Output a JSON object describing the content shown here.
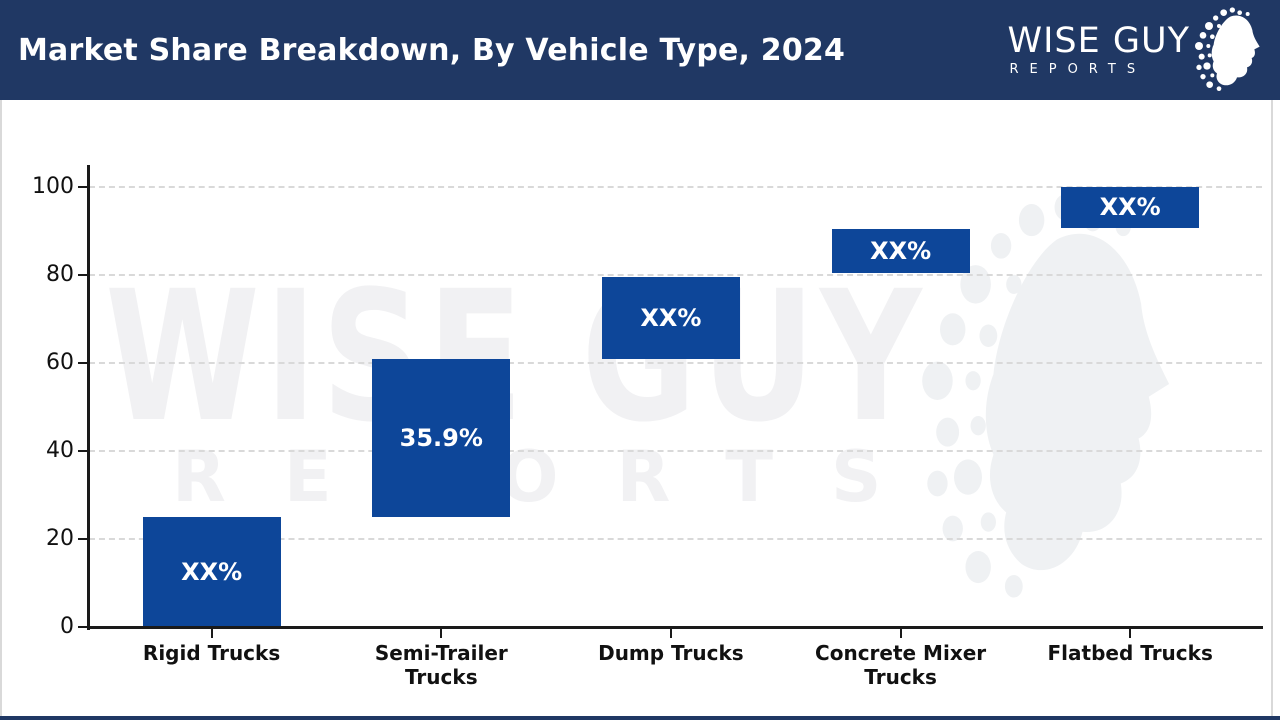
{
  "header": {
    "title": "Market Share Breakdown, By Vehicle Type, 2024",
    "brand": {
      "name": "WISE GUY",
      "subtitle": "REPORTS"
    }
  },
  "watermark": {
    "name": "WISE GUY",
    "subtitle": "REPORTS"
  },
  "chart_data": {
    "type": "bar",
    "subtype": "waterfall",
    "title": "Market Share Breakdown, By Vehicle Type, 2024",
    "categories": [
      "Rigid Trucks",
      "Semi-Trailer Trucks",
      "Dump Trucks",
      "Concrete Mixer Trucks",
      "Flatbed Trucks"
    ],
    "bars": [
      {
        "category": "Rigid Trucks",
        "label_lines": [
          "Rigid Trucks"
        ],
        "base": 0,
        "top": 25.0,
        "value_label": "XX%"
      },
      {
        "category": "Semi-Trailer Trucks",
        "label_lines": [
          "Semi-Trailer",
          "Trucks"
        ],
        "base": 25.0,
        "top": 60.9,
        "value_label": "35.9%"
      },
      {
        "category": "Dump Trucks",
        "label_lines": [
          "Dump Trucks"
        ],
        "base": 61.0,
        "top": 79.6,
        "value_label": "XX%"
      },
      {
        "category": "Concrete Mixer Trucks",
        "label_lines": [
          "Concrete Mixer",
          "Trucks"
        ],
        "base": 80.5,
        "top": 90.5,
        "value_label": "XX%"
      },
      {
        "category": "Flatbed Trucks",
        "label_lines": [
          "Flatbed Trucks"
        ],
        "base": 90.7,
        "top": 100.0,
        "value_label": "XX%"
      }
    ],
    "yticks": [
      0,
      20,
      40,
      60,
      80,
      100
    ],
    "ylim": [
      0,
      105
    ],
    "xlabel": "",
    "ylabel": "",
    "grid": "horizontal-dashed",
    "legend": "none",
    "bar_color": "#0d4699"
  },
  "colors": {
    "header_bg": "#203864",
    "bar": "#0d4699",
    "grid": "#d9d9d9",
    "axis": "#1a1a1a",
    "watermark": "#f1f1f3",
    "bar_label": "#ffffff"
  }
}
